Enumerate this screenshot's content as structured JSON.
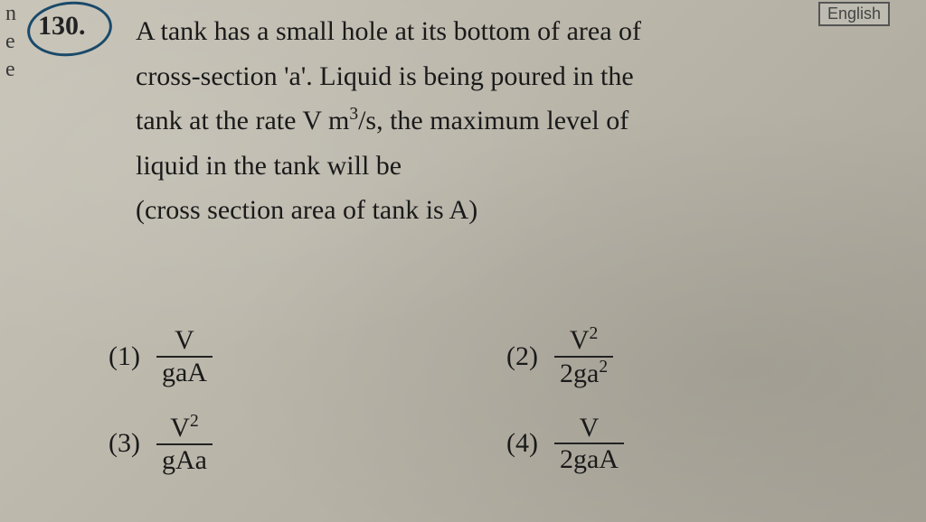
{
  "margin": {
    "c0": "n",
    "c1": "e",
    "c2": "e",
    "c3": ""
  },
  "tag": "English",
  "question": {
    "number": "130.",
    "line1_a": "A tank has a small hole at its bottom of area of",
    "line2": "cross-section 'a'. Liquid is being poured in the",
    "line3_a": "tank at the rate V m",
    "line3_sup": "3",
    "line3_b": "/s, the maximum level of",
    "line4": "liquid in the tank will be",
    "line5": "(cross section area of tank is A)"
  },
  "options": {
    "o1": {
      "label": "(1)",
      "num": "V",
      "den": "gaA"
    },
    "o2": {
      "label": "(2)",
      "num_base": "V",
      "num_sup": "2",
      "den_a": "2ga",
      "den_sup": "2"
    },
    "o3": {
      "label": "(3)",
      "num_base": "V",
      "num_sup": "2",
      "den": "gAa"
    },
    "o4": {
      "label": "(4)",
      "num": "V",
      "den": "2gaA"
    }
  }
}
